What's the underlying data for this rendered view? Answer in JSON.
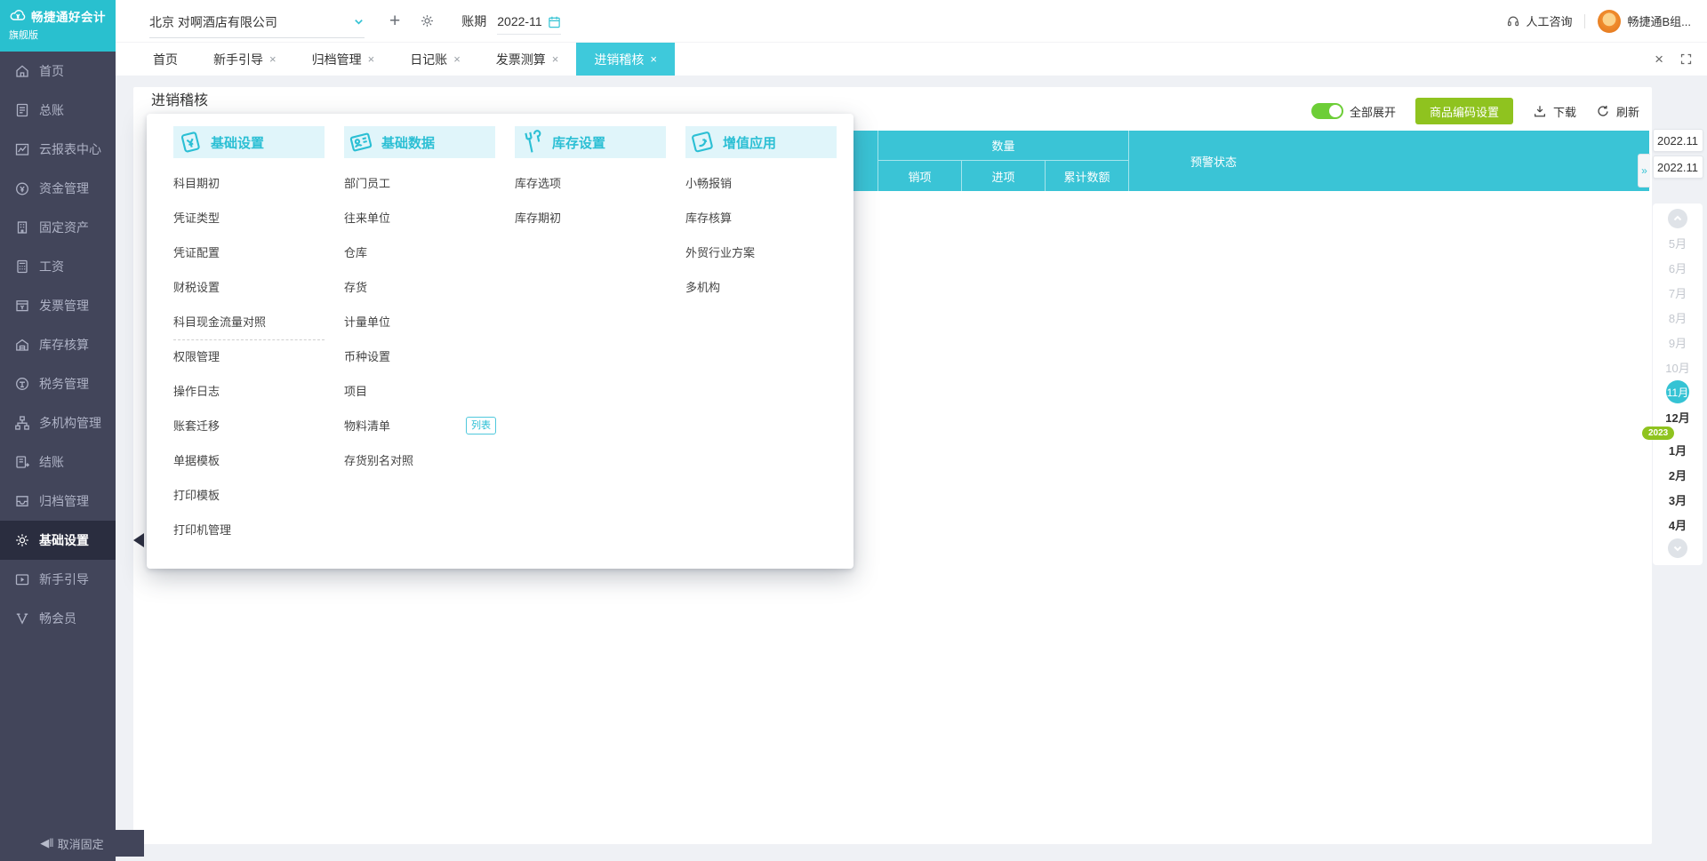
{
  "brand": {
    "name": "畅捷通好会计",
    "edition": "旗舰版"
  },
  "topbar": {
    "company": "北京 对啊酒店有限公司",
    "period_label": "账期",
    "period_value": "2022-11",
    "support": "人工咨询",
    "user": "畅捷通B组..."
  },
  "tabs": [
    {
      "label": "首页",
      "closable": false
    },
    {
      "label": "新手引导",
      "closable": true
    },
    {
      "label": "归档管理",
      "closable": true
    },
    {
      "label": "日记账",
      "closable": true
    },
    {
      "label": "发票测算",
      "closable": true
    },
    {
      "label": "进销稽核",
      "closable": true,
      "active": true
    }
  ],
  "sidebar": {
    "items": [
      {
        "label": "首页",
        "icon": "home"
      },
      {
        "label": "总账",
        "icon": "ledger"
      },
      {
        "label": "云报表中心",
        "icon": "cloud-report"
      },
      {
        "label": "资金管理",
        "icon": "funds"
      },
      {
        "label": "固定资产",
        "icon": "fixed-assets"
      },
      {
        "label": "工资",
        "icon": "salary"
      },
      {
        "label": "发票管理",
        "icon": "invoice"
      },
      {
        "label": "库存核算",
        "icon": "inventory"
      },
      {
        "label": "税务管理",
        "icon": "tax"
      },
      {
        "label": "多机构管理",
        "icon": "multi-org"
      },
      {
        "label": "结账",
        "icon": "closing"
      },
      {
        "label": "归档管理",
        "icon": "archive"
      },
      {
        "label": "基础设置",
        "icon": "settings",
        "active": true
      },
      {
        "label": "新手引导",
        "icon": "guide"
      },
      {
        "label": "畅会员",
        "icon": "member"
      }
    ],
    "unpin": "取消固定"
  },
  "page": {
    "title": "进销稽核"
  },
  "toolbar": {
    "expand_all": "全部展开",
    "toggle_on": true,
    "product_code": "商品编码设置",
    "download": "下载",
    "refresh": "刷新"
  },
  "table": {
    "qty_group": "数量",
    "qty_cols": [
      "销项",
      "进项",
      "累计数额"
    ],
    "warning_col": "预警状态"
  },
  "menu": {
    "sections": [
      {
        "title": "基础设置",
        "icon": "sec-settings",
        "items": [
          {
            "label": "科目期初"
          },
          {
            "label": "凭证类型"
          },
          {
            "label": "凭证配置"
          },
          {
            "label": "财税设置"
          },
          {
            "label": "科目现金流量对照",
            "divider_below": true
          },
          {
            "label": "权限管理"
          },
          {
            "label": "操作日志"
          },
          {
            "label": "账套迁移"
          },
          {
            "label": "单据模板"
          },
          {
            "label": "打印模板"
          },
          {
            "label": "打印机管理"
          }
        ]
      },
      {
        "title": "基础数据",
        "icon": "sec-data",
        "items": [
          {
            "label": "部门员工"
          },
          {
            "label": "往来单位"
          },
          {
            "label": "仓库"
          },
          {
            "label": "存货"
          },
          {
            "label": "计量单位"
          },
          {
            "label": "币种设置"
          },
          {
            "label": "项目"
          },
          {
            "label": "物料清单",
            "badge": "列表"
          },
          {
            "label": "存货别名对照"
          }
        ]
      },
      {
        "title": "库存设置",
        "icon": "sec-inventory",
        "items": [
          {
            "label": "库存选项"
          },
          {
            "label": "库存期初"
          }
        ]
      },
      {
        "title": "增值应用",
        "icon": "sec-value",
        "items": [
          {
            "label": "小畅报销"
          },
          {
            "label": "库存核算"
          },
          {
            "label": "外贸行业方案"
          },
          {
            "label": "多机构"
          }
        ]
      }
    ]
  },
  "date_rail": {
    "boxes": [
      "2022.11",
      "2022.11"
    ],
    "year_badge": "2023",
    "months": [
      {
        "label": "5月",
        "state": "past"
      },
      {
        "label": "6月",
        "state": "past"
      },
      {
        "label": "7月",
        "state": "past"
      },
      {
        "label": "8月",
        "state": "past"
      },
      {
        "label": "9月",
        "state": "past"
      },
      {
        "label": "10月",
        "state": "past"
      },
      {
        "label": "11月",
        "state": "current"
      },
      {
        "label": "12月",
        "state": "future"
      },
      {
        "label": "1月",
        "state": "future",
        "badge_before": true
      },
      {
        "label": "2月",
        "state": "future"
      },
      {
        "label": "3月",
        "state": "future"
      },
      {
        "label": "4月",
        "state": "future"
      }
    ],
    "expand_handle": "»"
  },
  "colors": {
    "teal": "#35C3D4",
    "teal_logo": "#29C0CF",
    "active_tab": "#3EC9DB",
    "green": "#8FC31F",
    "toggle_green": "#6DCE37",
    "sidebar_bg": "#42455A",
    "sidebar_active_bg": "#2A2D3F",
    "page_bg": "#EFF1F5",
    "section_header_bg": "#E0F5FA",
    "table_header": "#3AC4D6"
  }
}
